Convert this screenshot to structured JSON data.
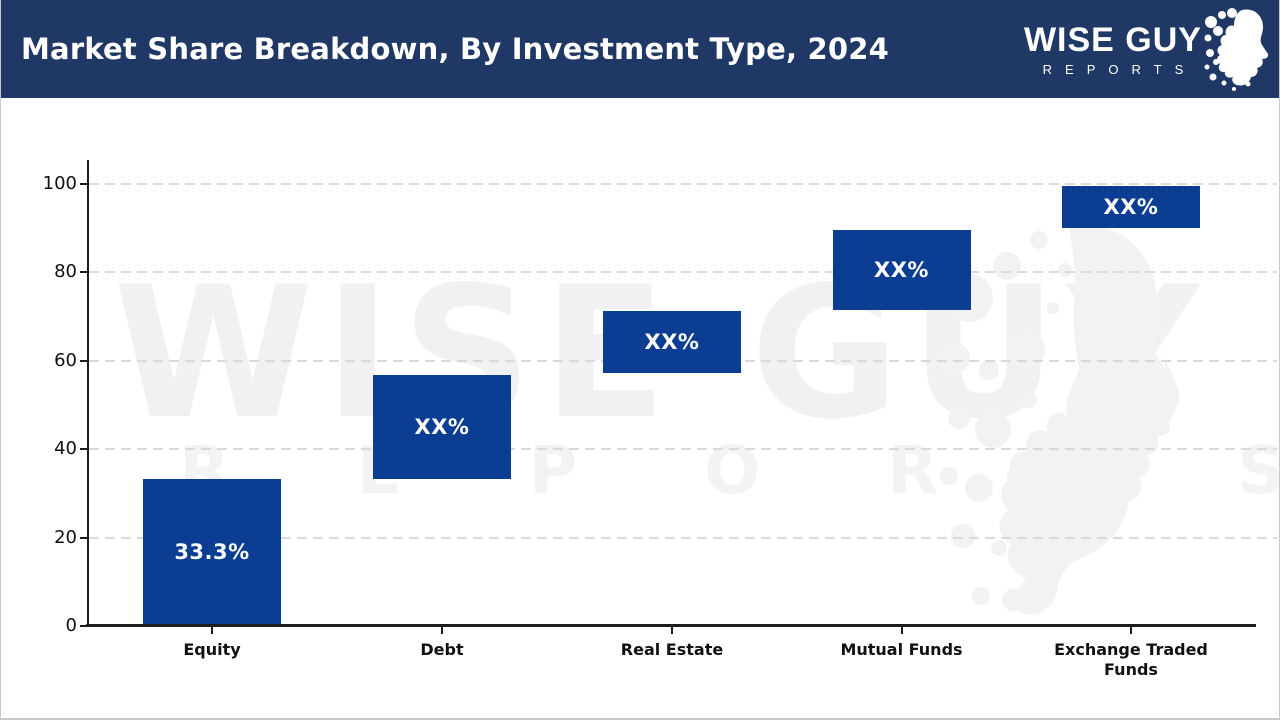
{
  "header": {
    "title": "Market Share Breakdown, By Investment Type, 2024",
    "logo": {
      "line1": "WISE GUY",
      "line2": "REPORTS"
    }
  },
  "watermark": {
    "line1": "WISE GUY",
    "line2": "R E P O R T S"
  },
  "colors": {
    "header_bg": "#203866",
    "bar": "#0b3e92",
    "gridline": "#d9d9d9",
    "axis": "#1c1c1c",
    "watermark": "#f1f1f4",
    "bar_label": "#ffffff",
    "title_text": "#ffffff"
  },
  "chart_data": {
    "type": "bar",
    "subtype": "floating-segment-waterfall",
    "title": "Market Share Breakdown, By Investment Type, 2024",
    "categories": [
      "Equity",
      "Debt",
      "Real Estate",
      "Mutual Funds",
      "Exchange Traded Funds"
    ],
    "segments": [
      {
        "category": "Equity",
        "start": 0,
        "end": 33.3,
        "label": "33.3%"
      },
      {
        "category": "Debt",
        "start": 33.3,
        "end": 56.9,
        "label": "XX%"
      },
      {
        "category": "Real Estate",
        "start": 57.2,
        "end": 71.2,
        "label": "XX%"
      },
      {
        "category": "Mutual Funds",
        "start": 71.4,
        "end": 89.6,
        "label": "XX%"
      },
      {
        "category": "Exchange Traded Funds",
        "start": 90.0,
        "end": 99.5,
        "label": "XX%"
      }
    ],
    "yticks": [
      0,
      20,
      40,
      60,
      80,
      100
    ],
    "ylim": [
      0,
      105
    ],
    "xlabel": "",
    "ylabel": "",
    "grid": "horizontal-dashed",
    "legend": "none"
  }
}
